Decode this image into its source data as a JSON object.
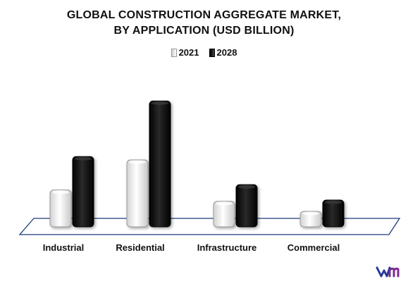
{
  "title_line1": "GLOBAL CONSTRUCTION AGGREGATE MARKET,",
  "title_line2": "BY APPLICATION (USD BILLION)",
  "logo_text": "vmr",
  "colors": {
    "s2021": "#e8e8e8",
    "s2028": "#111111",
    "floor_stroke": "#1f3a7a"
  },
  "chart_data": {
    "type": "bar",
    "title": "GLOBAL CONSTRUCTION AGGREGATE MARKET, BY APPLICATION (USD BILLION)",
    "categories": [
      "Industrial",
      "Residential",
      "Infrastructure",
      "Commercial"
    ],
    "series": [
      {
        "name": "2021",
        "values": [
          55,
          100,
          38,
          23
        ]
      },
      {
        "name": "2028",
        "values": [
          105,
          188,
          63,
          40
        ]
      }
    ],
    "ylim": [
      0,
      200
    ],
    "grid": false,
    "legend_position": "top-center",
    "xlabel": "",
    "ylabel": ""
  }
}
